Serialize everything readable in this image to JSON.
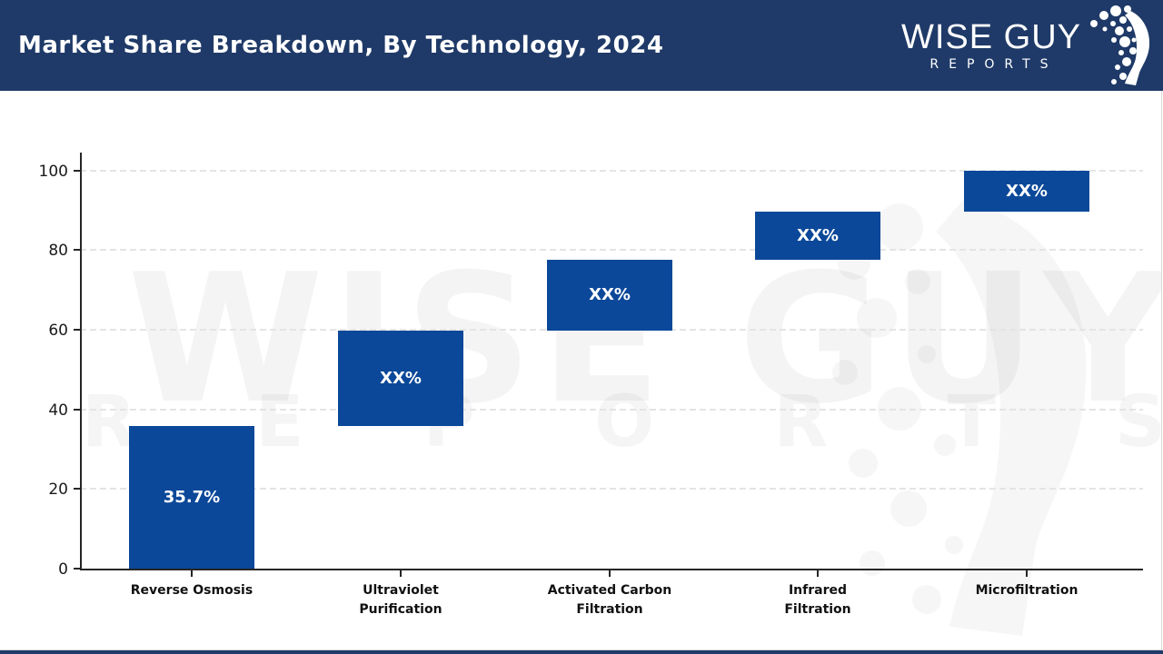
{
  "header": {
    "title": "Market Share Breakdown, By Technology, 2024",
    "bg_color": "#1f3a68",
    "logo": {
      "line1": "WISE GUY",
      "line2": "REPORTS"
    }
  },
  "watermark": {
    "line1": "WISE GUY",
    "line2": "R E P O R T S"
  },
  "chart_data": {
    "type": "bar",
    "subtype": "waterfall",
    "title": "Market Share Breakdown, By Technology, 2024",
    "xlabel": "",
    "ylabel": "",
    "ylim": [
      0,
      104.5
    ],
    "yticks": [
      0,
      20,
      40,
      60,
      80,
      100
    ],
    "grid": "dashed-horizontal",
    "legend": "none",
    "bar_color": "#0b4899",
    "categories": [
      "Reverse Osmosis",
      "Ultraviolet Purification",
      "Activated Carbon Filtration",
      "Infrared Filtration",
      "Microfiltration"
    ],
    "category_lines": [
      [
        "Reverse Osmosis"
      ],
      [
        "Ultraviolet",
        "Purification"
      ],
      [
        "Activated Carbon",
        "Filtration"
      ],
      [
        "Infrared",
        "Filtration"
      ],
      [
        "Microfiltration"
      ]
    ],
    "bar_labels": [
      "35.7%",
      "XX%",
      "XX%",
      "XX%",
      "XX%"
    ],
    "segments": [
      {
        "category": "Reverse Osmosis",
        "start": 0,
        "end": 35.7,
        "value_estimated": 35.7
      },
      {
        "category": "Ultraviolet Purification",
        "start": 35.7,
        "end": 59.8,
        "value_estimated": 24.1
      },
      {
        "category": "Activated Carbon Filtration",
        "start": 59.8,
        "end": 77.5,
        "value_estimated": 17.7
      },
      {
        "category": "Infrared Filtration",
        "start": 77.5,
        "end": 89.6,
        "value_estimated": 12.1
      },
      {
        "category": "Microfiltration",
        "start": 89.6,
        "end": 100,
        "value_estimated": 10.4
      }
    ]
  }
}
